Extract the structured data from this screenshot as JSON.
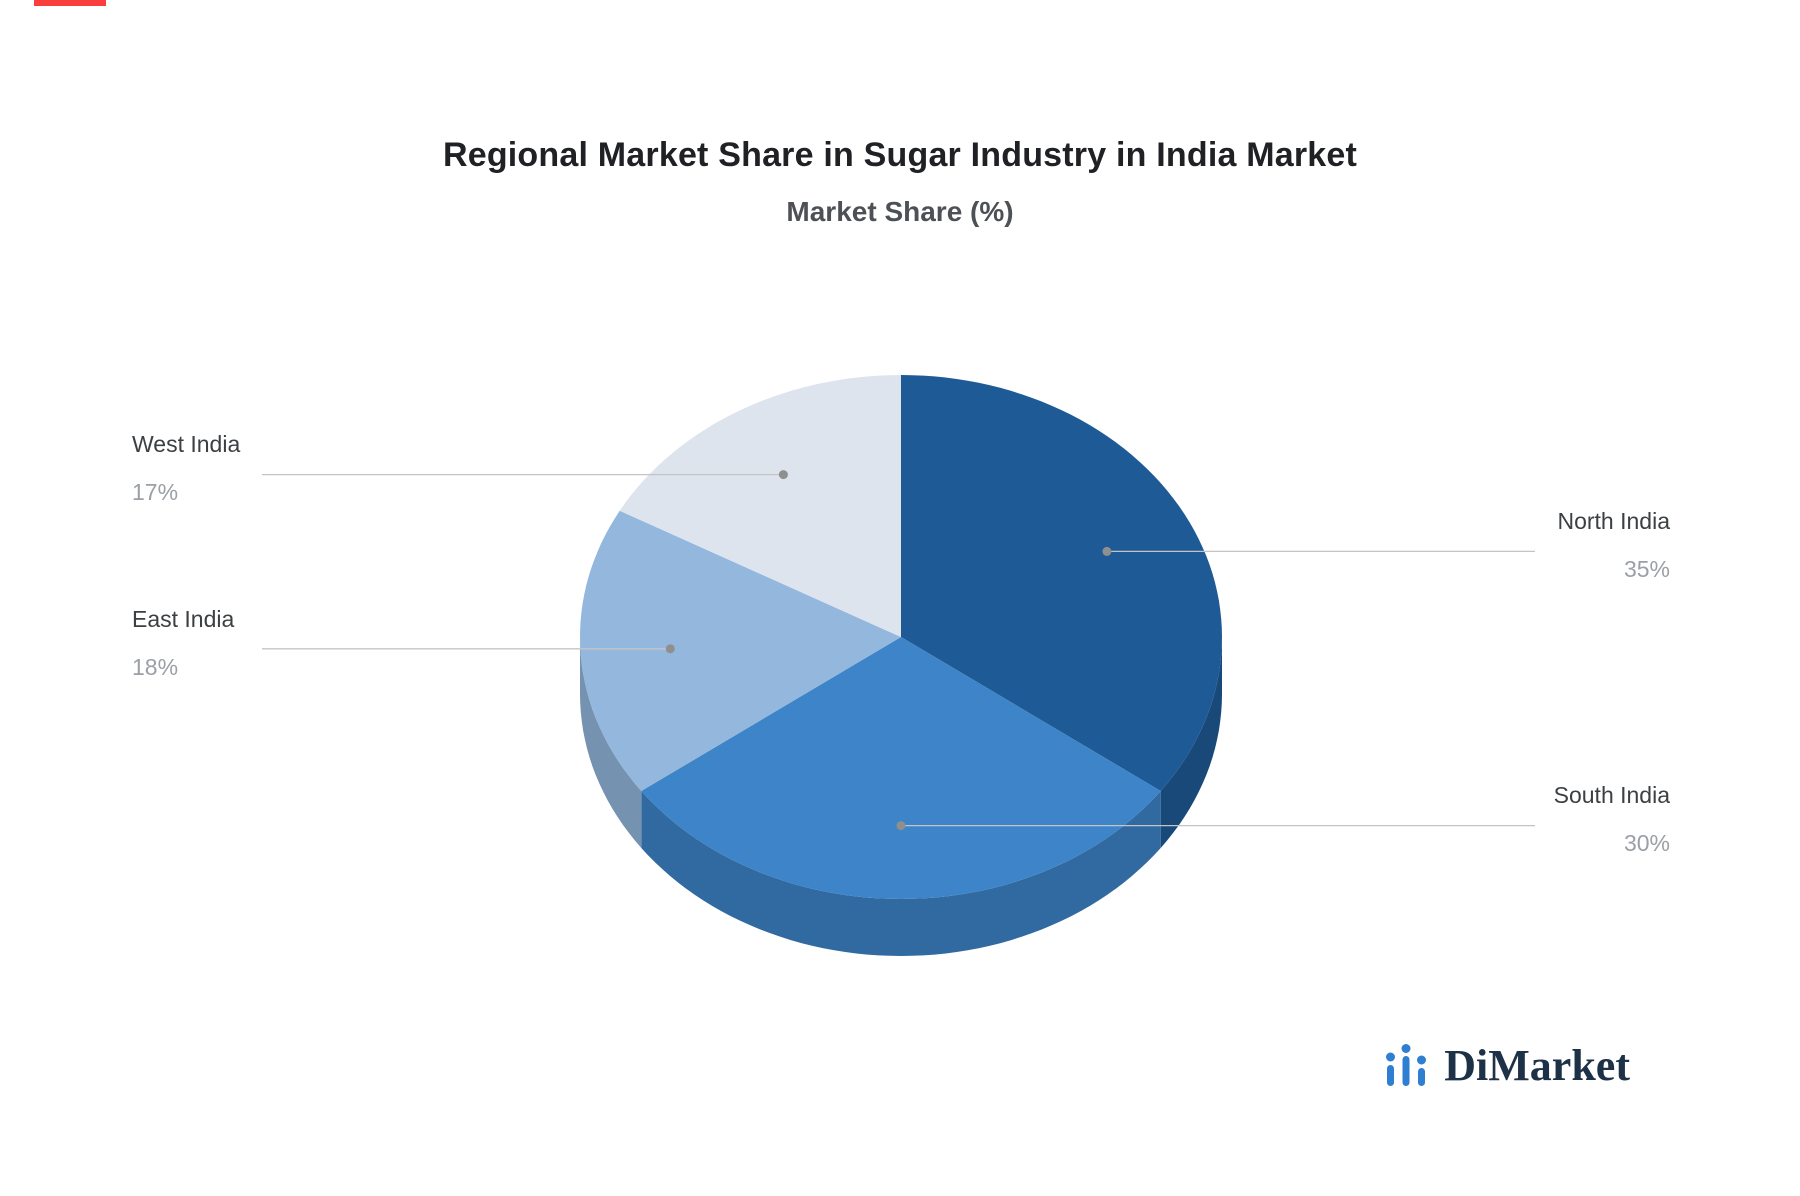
{
  "page": {
    "background": "#ffffff"
  },
  "artifact": {
    "description": "red strip at top-left screen edge",
    "color": "#fa3e3e"
  },
  "chart_data": {
    "type": "pie",
    "effect": "3d",
    "title": "Regional Market Share in Sugar Industry in India Market",
    "subtitle": "Market Share (%)",
    "unit": "%",
    "direction": "clockwise",
    "start_angle_deg": 0,
    "legend_position": "none",
    "labels_show_percent": true,
    "slices": [
      {
        "label": "North India",
        "value": 35,
        "percent_label": "35%",
        "color": "#1e5b96"
      },
      {
        "label": "South India",
        "value": 30,
        "percent_label": "30%",
        "color": "#3d85c8"
      },
      {
        "label": "East India",
        "value": 18,
        "percent_label": "18%",
        "color": "#93b7dd"
      },
      {
        "label": "West India",
        "value": 17,
        "percent_label": "17%",
        "color": "#dde4ee"
      }
    ]
  },
  "colors": {
    "title": "#202124",
    "subtitle": "#4d5156",
    "slice_label": "#3c4043",
    "slice_percent": "#9aa0a6",
    "leader_line": "#c4c4c4",
    "leader_dot": "#8f8f8f"
  },
  "brand": {
    "name": "DiMarket",
    "icon": "bar-chart-logo-icon",
    "icon_color": "#2e7fd2",
    "text_color": "#1d3147"
  }
}
